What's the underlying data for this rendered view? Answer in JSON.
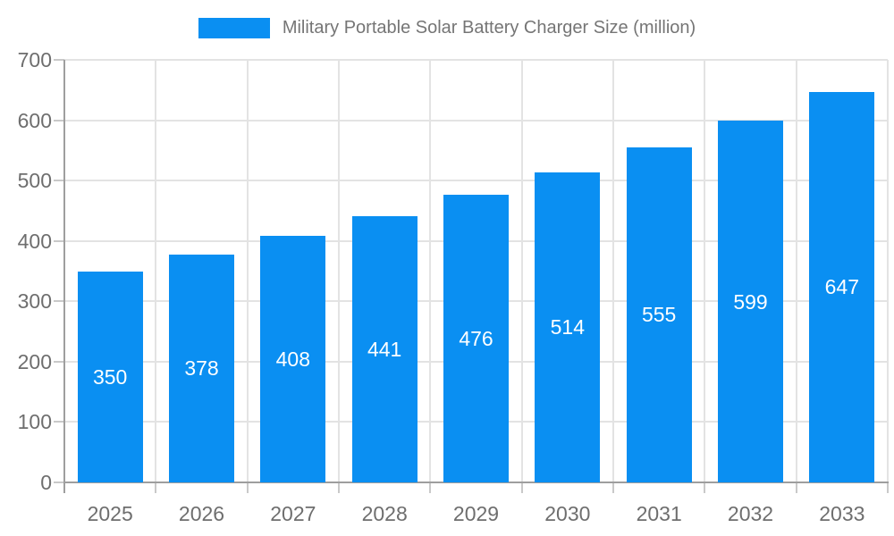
{
  "legend": {
    "label": "Military Portable Solar Battery Charger Size (million)",
    "swatch_color": "#0a8ff2"
  },
  "chart_data": {
    "type": "bar",
    "title": "Military Portable Solar Battery Charger Size (million)",
    "series_name": "Military Portable Solar Battery Charger Size (million)",
    "categories": [
      "2025",
      "2026",
      "2027",
      "2028",
      "2029",
      "2030",
      "2031",
      "2032",
      "2033"
    ],
    "values": [
      350,
      378,
      408,
      441,
      476,
      514,
      555,
      599,
      647
    ],
    "value_labels": [
      "350",
      "378",
      "408",
      "441",
      "476",
      "514",
      "555",
      "599",
      "647"
    ],
    "xlabel": "",
    "ylabel": "",
    "ylim": [
      0,
      700
    ],
    "yticks": [
      0,
      100,
      200,
      300,
      400,
      500,
      600,
      700
    ],
    "grid": true,
    "legend_position": "top-center",
    "value_labels_inside_bars": true
  },
  "colors": {
    "bar": "#0a8ff2",
    "axis": "#9e9e9e",
    "grid": "#e3e3e3",
    "tick": "#c9c9c9",
    "tick_text": "#6e6e6e",
    "legend_text": "#757575",
    "value_label": "#ffffff",
    "background": "#ffffff"
  }
}
